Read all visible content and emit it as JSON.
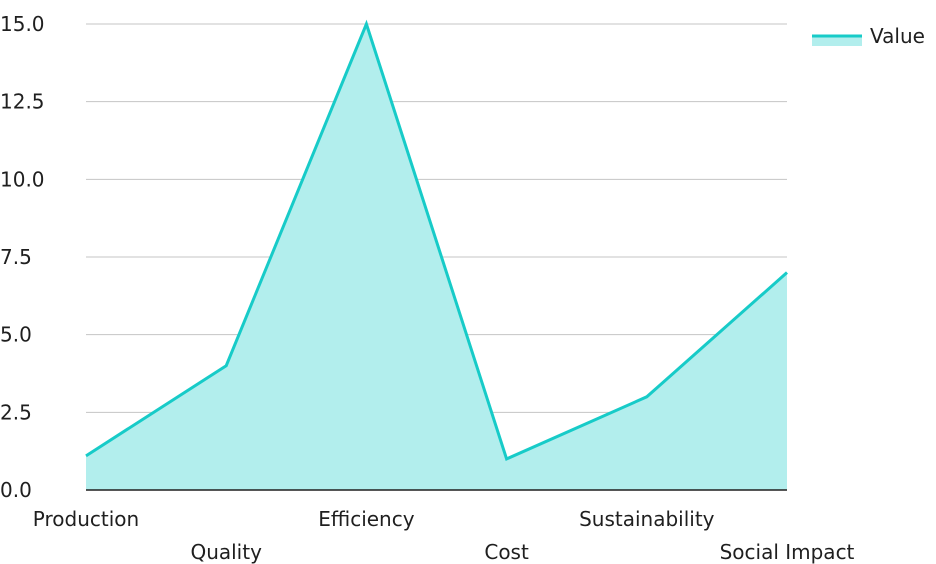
{
  "chart_data": {
    "type": "area",
    "categories": [
      "Production",
      "Quality",
      "Efficiency",
      "Cost",
      "Sustainability",
      "Social Impact"
    ],
    "series": [
      {
        "name": "Value",
        "values": [
          1.1,
          4.0,
          15.0,
          1.0,
          3.0,
          7.0
        ]
      }
    ],
    "y_ticks": [
      "0.0",
      "2.5",
      "5.0",
      "7.5",
      "10.0",
      "12.5",
      "15.0"
    ],
    "ylim": [
      0,
      15
    ],
    "grid": true,
    "legend_position": "top-right",
    "colors": {
      "line": "#17cbc8",
      "fill": "#b2eeed",
      "grid": "#c4c4c4",
      "axis": "#1f1f1f"
    }
  }
}
